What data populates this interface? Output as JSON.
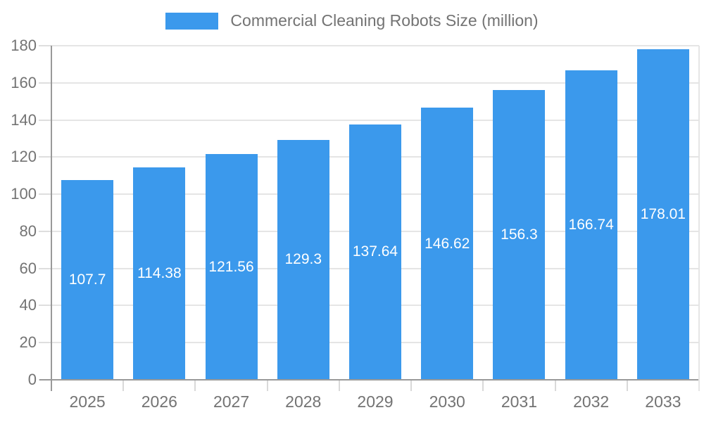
{
  "legend": {
    "label": "Commercial Cleaning Robots Size (million)"
  },
  "chart_data": {
    "type": "bar",
    "title": "Commercial Cleaning Robots Size (million)",
    "series_name": "Commercial Cleaning Robots Size (million)",
    "categories": [
      "2025",
      "2026",
      "2027",
      "2028",
      "2029",
      "2030",
      "2031",
      "2032",
      "2033"
    ],
    "values": [
      107.7,
      114.38,
      121.56,
      129.3,
      137.64,
      146.62,
      156.3,
      166.74,
      178.01
    ],
    "value_labels": [
      "107.7",
      "114.38",
      "121.56",
      "129.3",
      "137.64",
      "146.62",
      "156.3",
      "166.74",
      "178.01"
    ],
    "value_labels_position": "inside-center",
    "xlabel": "",
    "ylabel": "",
    "ylim": [
      0,
      180
    ],
    "yticks": [
      0,
      20,
      40,
      60,
      80,
      100,
      120,
      140,
      160,
      180
    ],
    "grid": true,
    "legend_position": "top-center"
  },
  "colors": {
    "bar": "#3b99ec",
    "bar_label": "#ffffff",
    "axis_text": "#737373",
    "grid_line": "#e5e5e5",
    "axis_line": "#999999",
    "background": "#ffffff"
  }
}
